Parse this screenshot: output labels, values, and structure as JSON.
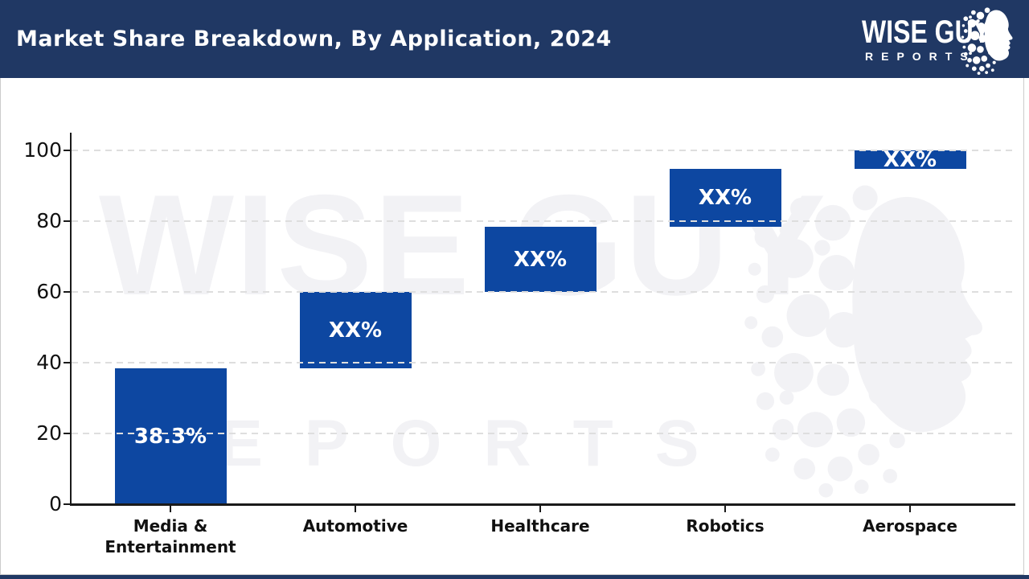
{
  "header": {
    "title": "Market Share Breakdown, By Application, 2024",
    "logo": {
      "line1": "WISE GUY",
      "line2": "REPORTS"
    }
  },
  "watermark": {
    "line1": "WISE GUY",
    "line2": "REPORTS"
  },
  "colors": {
    "header_bg": "#203864",
    "footer_bg": "#203864",
    "bar": "#0d47a1",
    "bar_label": "#ffffff",
    "gridline": "#dedede",
    "axis": "#1a1a1a",
    "watermark": "#f2f2f5",
    "title_text": "#ffffff"
  },
  "chart_data": {
    "type": "bar",
    "subtype": "waterfall",
    "title": "Market Share Breakdown, By Application, 2024",
    "xlabel": "",
    "ylabel": "",
    "categories": [
      "Media &\nEntertainment",
      "Automotive",
      "Healthcare",
      "Robotics",
      "Aerospace"
    ],
    "segments": [
      {
        "category": "Media &\nEntertainment",
        "start": 0,
        "end": 38.3,
        "label": "38.3%"
      },
      {
        "category": "Automotive",
        "start": 38.3,
        "end": 60.0,
        "label": "XX%"
      },
      {
        "category": "Healthcare",
        "start": 60.0,
        "end": 78.3,
        "label": "XX%"
      },
      {
        "category": "Robotics",
        "start": 78.3,
        "end": 94.7,
        "label": "XX%"
      },
      {
        "category": "Aerospace",
        "start": 94.7,
        "end": 100.0,
        "label": "XX%"
      }
    ],
    "yticks": [
      0,
      20,
      40,
      60,
      80,
      100
    ],
    "ylim": [
      0,
      105
    ],
    "grid": "dashed horizontal",
    "legend": "none"
  }
}
